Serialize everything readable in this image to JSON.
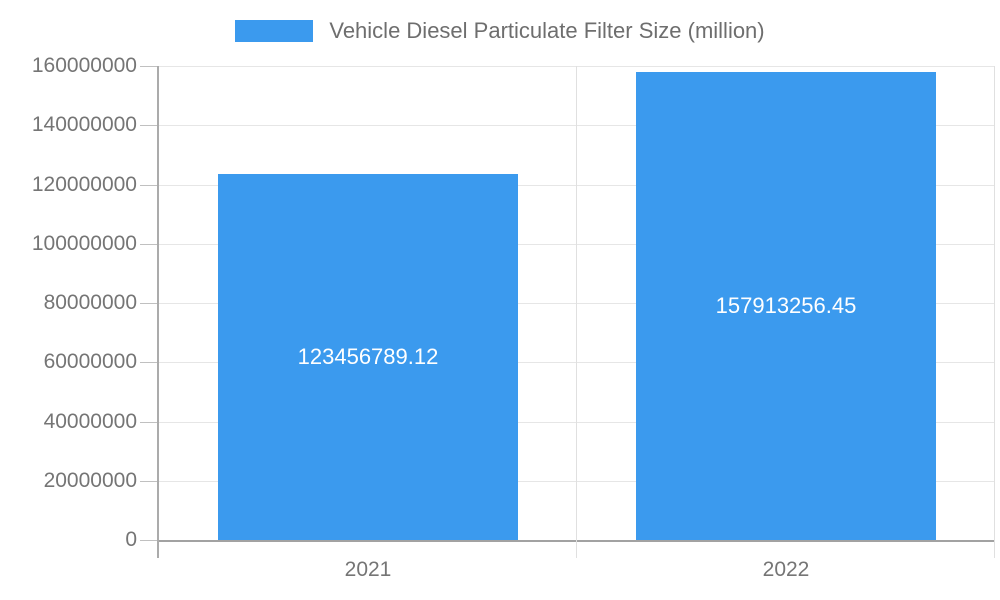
{
  "legend": {
    "label": "Vehicle Diesel Particulate Filter Size (million)",
    "swatch_color": "#3B9AEE"
  },
  "chart_data": {
    "type": "bar",
    "title": "Vehicle Diesel Particulate Filter Size (million)",
    "categories": [
      "2021",
      "2022"
    ],
    "values": [
      123456789.12,
      157913256.45
    ],
    "value_labels": [
      "123456789.12",
      "157913256.45"
    ],
    "xlabel": "",
    "ylabel": "",
    "ylim": [
      0,
      160000000
    ],
    "ytick_step": 20000000,
    "ytick_labels": [
      "0",
      "20000000",
      "40000000",
      "60000000",
      "80000000",
      "100000000",
      "120000000",
      "140000000",
      "160000000"
    ],
    "grid": true,
    "legend_position": "top",
    "bar_color": "#3B9AEE",
    "value_label_color": "#ffffff"
  },
  "colors": {
    "background": "#ffffff",
    "bar": "#3B9AEE",
    "axis_text": "#757575",
    "title_text": "#6e6e6e",
    "gridline": "#e6e6e6",
    "axis_line": "#ababab",
    "bar_value_text": "#ffffff"
  }
}
